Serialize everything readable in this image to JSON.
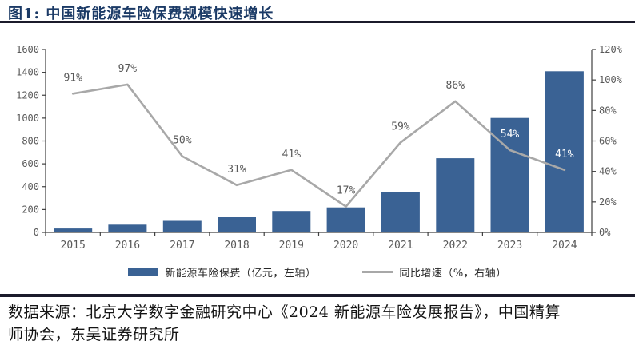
{
  "header": {
    "title": "图1:  中国新能源车险保费规模快速增长"
  },
  "chart_data": {
    "type": "bar",
    "subtype": "bar-line-combo",
    "title": "中国新能源车险保费规模快速增长",
    "categories": [
      "2015",
      "2016",
      "2017",
      "2018",
      "2019",
      "2020",
      "2021",
      "2022",
      "2023",
      "2024"
    ],
    "series": [
      {
        "name": "新能源车险保费（亿元，左轴）",
        "type": "bar",
        "axis": "left",
        "color": "#3A6294",
        "values": [
          34,
          68,
          101,
          133,
          187,
          219,
          349,
          649,
          1001,
          1409
        ]
      },
      {
        "name": "同比增速（%，右轴）",
        "type": "line",
        "axis": "right",
        "color": "#A8A8A8",
        "values": [
          91,
          97,
          50,
          31,
          41,
          17,
          59,
          86,
          54,
          41
        ]
      }
    ],
    "data_labels": {
      "texts": [
        "91%",
        "97%",
        "50%",
        "31%",
        "41%",
        "17%",
        "59%",
        "86%",
        "54%",
        "41%"
      ],
      "colors": [
        "#595959",
        "#595959",
        "#595959",
        "#595959",
        "#595959",
        "#595959",
        "#595959",
        "#595959",
        "#FFFFFF",
        "#FFFFFF"
      ]
    },
    "left_axis": {
      "min": 0,
      "max": 1600,
      "step": 200,
      "ticks": [
        "0",
        "200",
        "400",
        "600",
        "800",
        "1000",
        "1200",
        "1400",
        "1600"
      ]
    },
    "right_axis": {
      "min": 0,
      "max": 120,
      "step": 20,
      "ticks": [
        "0%",
        "20%",
        "40%",
        "60%",
        "80%",
        "100%",
        "120%"
      ]
    },
    "grid": false,
    "legend_position": "bottom"
  },
  "legend": {
    "items": [
      {
        "label": "新能源车险保费（亿元，左轴）",
        "swatch": "bar",
        "color": "#3A6294"
      },
      {
        "label": "同比增速（%，右轴）",
        "swatch": "line",
        "color": "#A8A8A8"
      }
    ]
  },
  "source": {
    "text": "数据来源：北京大学数字金融研究中心《2024 新能源车险发展报告》，中国精算师协会，东吴证券研究所"
  },
  "colors": {
    "title": "#1B3A66",
    "rule": "#1B1B2B",
    "axis_line": "#404040",
    "axis_text": "#595959",
    "bar": "#3A6294",
    "line": "#A8A8A8"
  }
}
